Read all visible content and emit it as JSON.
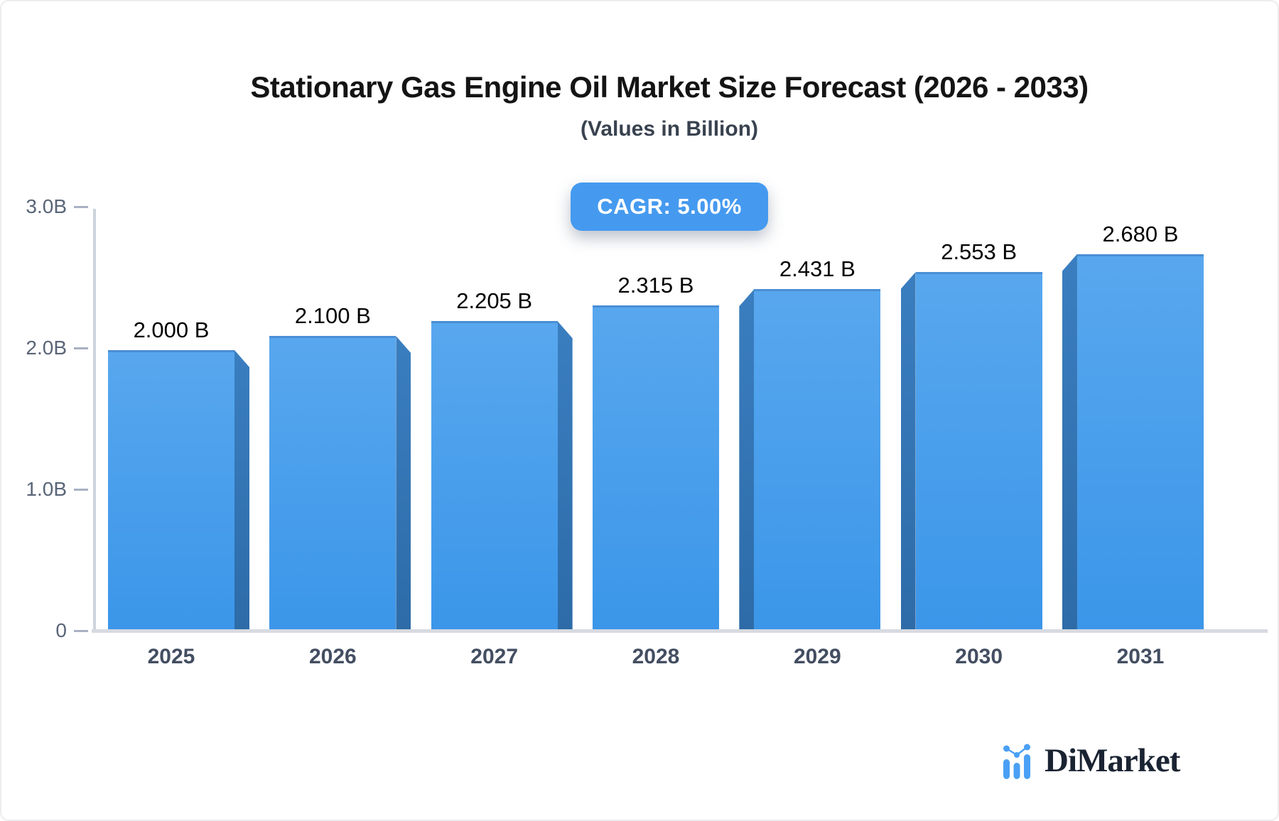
{
  "header": {
    "title": "Stationary Gas Engine Oil Market Size Forecast (2026 - 2033)",
    "subtitle": "(Values in Billion)",
    "cagr_badge": "CAGR: 5.00%"
  },
  "chart_data": {
    "type": "bar",
    "title": "Stationary Gas Engine Oil Market Size Forecast (2026 - 2033)",
    "subtitle": "(Values in Billion)",
    "categories": [
      "2025",
      "2026",
      "2027",
      "2028",
      "2029",
      "2030",
      "2031"
    ],
    "values": [
      2.0,
      2.1,
      2.205,
      2.315,
      2.431,
      2.553,
      2.68
    ],
    "value_labels": [
      "2.000 B",
      "2.100 B",
      "2.205 B",
      "2.315 B",
      "2.431 B",
      "2.553 B",
      "2.680 B"
    ],
    "xlabel": "",
    "ylabel": "",
    "ylim": [
      0,
      3.0
    ],
    "yticks": [
      {
        "value": 3.0,
        "label": "3.0B"
      },
      {
        "value": 2.0,
        "label": "2.0B"
      },
      {
        "value": 1.0,
        "label": "1.0B"
      },
      {
        "value": 0.0,
        "label": "0"
      }
    ],
    "cagr": "5.00%",
    "grid": false,
    "legend": "none",
    "bar_style": "3d-beveled, side shading faces toward center"
  },
  "branding": {
    "logo_text": "DiMarket"
  },
  "colors": {
    "badge_bg": "#459AEF",
    "bar_face_top": "#58A7EE",
    "bar_face_bottom": "#3B96E9",
    "bar_side_top": "#3A7EC0",
    "bar_side_bottom": "#2D6BA8",
    "bar_top_edge": "#4A8ED4",
    "axis": "#CED4DD",
    "baseline": "#D7DAE0",
    "ytick_label": "#5A6578",
    "xtick_label": "#434E61",
    "value_label": "#000000",
    "title": "#141414",
    "subtitle": "#39424F",
    "logo_text": "#1A2332",
    "logo_icon": "#4AA0F5"
  }
}
